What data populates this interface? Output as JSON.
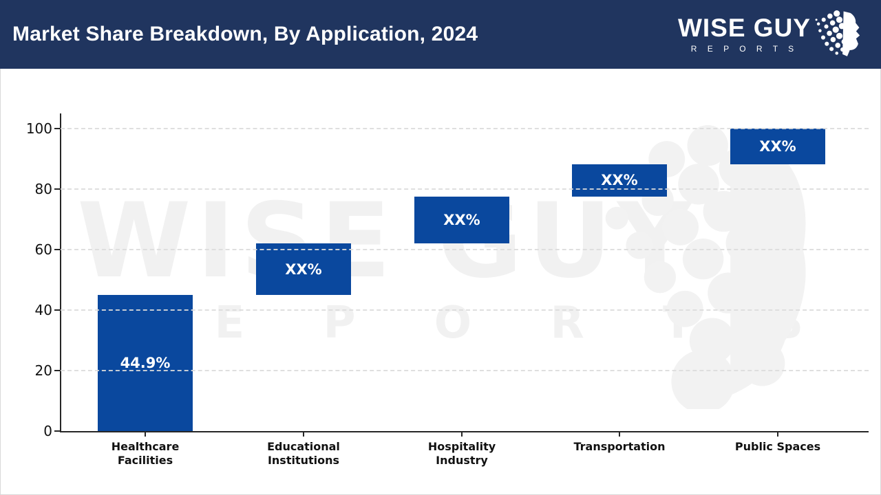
{
  "header": {
    "title": "Market Share Breakdown, By Application, 2024",
    "logo": {
      "line1": "WISE GUY",
      "line2": "R E P O R T S",
      "head_icon": "dotted-face-profile"
    }
  },
  "watermark": {
    "line1": "WISE GUY",
    "line2": "R E P O R T S",
    "head_icon": "dotted-face-profile"
  },
  "colors": {
    "header_bg": "#20355f",
    "bar": "#0a489e",
    "bar_label": "#ffffff",
    "grid": "#dcdcdc",
    "axis": "#262626",
    "text": "#111111",
    "watermark": "#f1f1f1",
    "frame_border": "#d8d8d8"
  },
  "chart_data": {
    "type": "bar",
    "subtype": "floating-waterfall",
    "title": "Market Share Breakdown, By Application, 2024",
    "xlabel": "",
    "ylabel": "",
    "ylim": [
      0,
      100
    ],
    "yticks": [
      0,
      20,
      40,
      60,
      80,
      100
    ],
    "grid": "horizontal-dashed",
    "legend": "none",
    "categories": [
      "Healthcare Facilities",
      "Educational Institutions",
      "Hospitality Industry",
      "Transportation",
      "Public Spaces"
    ],
    "category_lines": [
      [
        "Healthcare",
        "Facilities"
      ],
      [
        "Educational",
        "Institutions"
      ],
      [
        "Hospitality",
        "Industry"
      ],
      [
        "Transportation"
      ],
      [
        "Public Spaces"
      ]
    ],
    "segments": [
      {
        "category": "Healthcare Facilities",
        "start": 0,
        "end": 44.9,
        "label": "44.9%"
      },
      {
        "category": "Educational Institutions",
        "start": 44.9,
        "end": 62.0,
        "label": "XX%"
      },
      {
        "category": "Hospitality Industry",
        "start": 62.0,
        "end": 77.5,
        "label": "XX%"
      },
      {
        "category": "Transportation",
        "start": 77.5,
        "end": 88.2,
        "label": "XX%"
      },
      {
        "category": "Public Spaces",
        "start": 88.2,
        "end": 100.0,
        "label": "XX%"
      }
    ]
  }
}
